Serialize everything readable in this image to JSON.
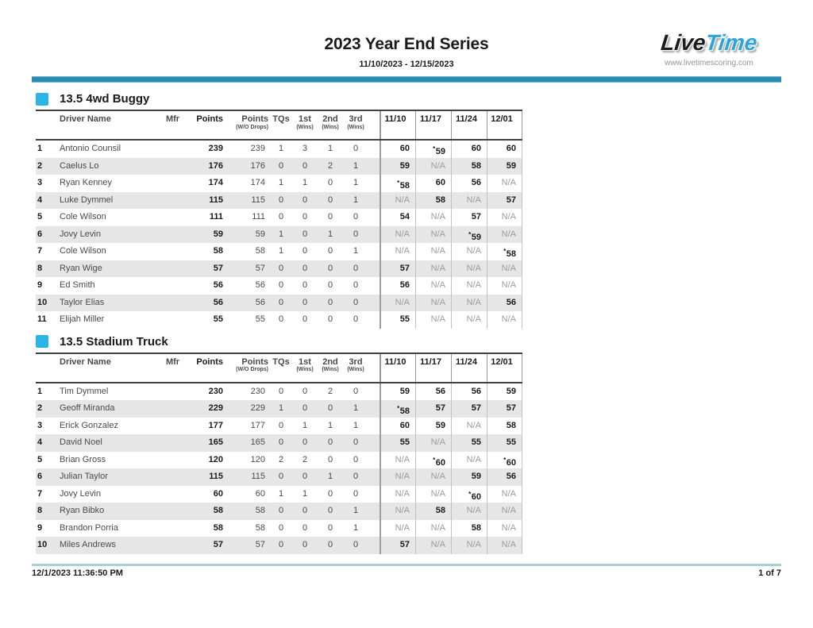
{
  "header": {
    "title": "2023 Year End Series",
    "date_range": "11/10/2023 - 12/15/2023",
    "logo_live": "Live",
    "logo_time": "Time",
    "logo_url": "www.livetimescoring.com"
  },
  "columns": {
    "position": "",
    "driver": "Driver Name",
    "mfr": "Mfr",
    "points": "Points",
    "points_wo_main": "Points",
    "points_wo_sub": "(W/O Drops)",
    "tqs": "TQs",
    "win_cols": [
      {
        "main": "1st",
        "sub": "(Wins)"
      },
      {
        "main": "2nd",
        "sub": "(Wins)"
      },
      {
        "main": "3rd",
        "sub": "(Wins)"
      }
    ],
    "race_dates": [
      "11/10",
      "11/17",
      "11/24",
      "12/01"
    ]
  },
  "sections": [
    {
      "title": "13.5 4wd Buggy",
      "rows": [
        {
          "pos": "1",
          "driver": "Antonio Counsil",
          "mfr": "",
          "points": "239",
          "points_wo": "239",
          "tqs": "1",
          "wins": [
            "3",
            "1",
            "0"
          ],
          "scores": [
            "60",
            "*59",
            "60",
            "60"
          ]
        },
        {
          "pos": "2",
          "driver": "Caelus Lo",
          "mfr": "",
          "points": "176",
          "points_wo": "176",
          "tqs": "0",
          "wins": [
            "0",
            "2",
            "1"
          ],
          "scores": [
            "59",
            "N/A",
            "58",
            "59"
          ]
        },
        {
          "pos": "3",
          "driver": "Ryan Kenney",
          "mfr": "",
          "points": "174",
          "points_wo": "174",
          "tqs": "1",
          "wins": [
            "1",
            "0",
            "1"
          ],
          "scores": [
            "*58",
            "60",
            "56",
            "N/A"
          ]
        },
        {
          "pos": "4",
          "driver": "Luke Dymmel",
          "mfr": "",
          "points": "115",
          "points_wo": "115",
          "tqs": "0",
          "wins": [
            "0",
            "0",
            "1"
          ],
          "scores": [
            "N/A",
            "58",
            "N/A",
            "57"
          ]
        },
        {
          "pos": "5",
          "driver": "Cole Wilson",
          "mfr": "",
          "points": "111",
          "points_wo": "111",
          "tqs": "0",
          "wins": [
            "0",
            "0",
            "0"
          ],
          "scores": [
            "54",
            "N/A",
            "57",
            "N/A"
          ]
        },
        {
          "pos": "6",
          "driver": "Jovy Levin",
          "mfr": "",
          "points": "59",
          "points_wo": "59",
          "tqs": "1",
          "wins": [
            "0",
            "1",
            "0"
          ],
          "scores": [
            "N/A",
            "N/A",
            "*59",
            "N/A"
          ]
        },
        {
          "pos": "7",
          "driver": "Cole Wilson",
          "mfr": "",
          "points": "58",
          "points_wo": "58",
          "tqs": "1",
          "wins": [
            "0",
            "0",
            "1"
          ],
          "scores": [
            "N/A",
            "N/A",
            "N/A",
            "*58"
          ]
        },
        {
          "pos": "8",
          "driver": "Ryan Wige",
          "mfr": "",
          "points": "57",
          "points_wo": "57",
          "tqs": "0",
          "wins": [
            "0",
            "0",
            "0"
          ],
          "scores": [
            "57",
            "N/A",
            "N/A",
            "N/A"
          ]
        },
        {
          "pos": "9",
          "driver": "Ed Smith",
          "mfr": "",
          "points": "56",
          "points_wo": "56",
          "tqs": "0",
          "wins": [
            "0",
            "0",
            "0"
          ],
          "scores": [
            "56",
            "N/A",
            "N/A",
            "N/A"
          ]
        },
        {
          "pos": "10",
          "driver": "Taylor Elias",
          "mfr": "",
          "points": "56",
          "points_wo": "56",
          "tqs": "0",
          "wins": [
            "0",
            "0",
            "0"
          ],
          "scores": [
            "N/A",
            "N/A",
            "N/A",
            "56"
          ]
        },
        {
          "pos": "11",
          "driver": "Elijah Miller",
          "mfr": "",
          "points": "55",
          "points_wo": "55",
          "tqs": "0",
          "wins": [
            "0",
            "0",
            "0"
          ],
          "scores": [
            "55",
            "N/A",
            "N/A",
            "N/A"
          ]
        }
      ]
    },
    {
      "title": "13.5 Stadium Truck",
      "rows": [
        {
          "pos": "1",
          "driver": "Tim Dymmel",
          "mfr": "",
          "points": "230",
          "points_wo": "230",
          "tqs": "0",
          "wins": [
            "0",
            "2",
            "0"
          ],
          "scores": [
            "59",
            "56",
            "56",
            "59"
          ]
        },
        {
          "pos": "2",
          "driver": "Geoff Miranda",
          "mfr": "",
          "points": "229",
          "points_wo": "229",
          "tqs": "1",
          "wins": [
            "0",
            "0",
            "1"
          ],
          "scores": [
            "*58",
            "57",
            "57",
            "57"
          ]
        },
        {
          "pos": "3",
          "driver": "Erick Gonzalez",
          "mfr": "",
          "points": "177",
          "points_wo": "177",
          "tqs": "0",
          "wins": [
            "1",
            "1",
            "1"
          ],
          "scores": [
            "60",
            "59",
            "N/A",
            "58"
          ]
        },
        {
          "pos": "4",
          "driver": "David Noel",
          "mfr": "",
          "points": "165",
          "points_wo": "165",
          "tqs": "0",
          "wins": [
            "0",
            "0",
            "0"
          ],
          "scores": [
            "55",
            "N/A",
            "55",
            "55"
          ]
        },
        {
          "pos": "5",
          "driver": "Brian Gross",
          "mfr": "",
          "points": "120",
          "points_wo": "120",
          "tqs": "2",
          "wins": [
            "2",
            "0",
            "0"
          ],
          "scores": [
            "N/A",
            "*60",
            "N/A",
            "*60"
          ]
        },
        {
          "pos": "6",
          "driver": "Julian Taylor",
          "mfr": "",
          "points": "115",
          "points_wo": "115",
          "tqs": "0",
          "wins": [
            "0",
            "1",
            "0"
          ],
          "scores": [
            "N/A",
            "N/A",
            "59",
            "56"
          ]
        },
        {
          "pos": "7",
          "driver": "Jovy Levin",
          "mfr": "",
          "points": "60",
          "points_wo": "60",
          "tqs": "1",
          "wins": [
            "1",
            "0",
            "0"
          ],
          "scores": [
            "N/A",
            "N/A",
            "*60",
            "N/A"
          ]
        },
        {
          "pos": "8",
          "driver": "Ryan Bibko",
          "mfr": "",
          "points": "58",
          "points_wo": "58",
          "tqs": "0",
          "wins": [
            "0",
            "0",
            "1"
          ],
          "scores": [
            "N/A",
            "58",
            "N/A",
            "N/A"
          ]
        },
        {
          "pos": "9",
          "driver": "Brandon Porria",
          "mfr": "",
          "points": "58",
          "points_wo": "58",
          "tqs": "0",
          "wins": [
            "0",
            "0",
            "1"
          ],
          "scores": [
            "N/A",
            "N/A",
            "58",
            "N/A"
          ]
        },
        {
          "pos": "10",
          "driver": "Miles Andrews",
          "mfr": "",
          "points": "57",
          "points_wo": "57",
          "tqs": "0",
          "wins": [
            "0",
            "0",
            "0"
          ],
          "scores": [
            "57",
            "N/A",
            "N/A",
            "N/A"
          ]
        }
      ]
    }
  ],
  "footer": {
    "timestamp": "12/1/2023 11:36:50 PM",
    "page": "1 of 7"
  },
  "colors": {
    "header_rule": "#2b8cb2",
    "class_bullet": "#29b5e8",
    "row_alt": "#e6e6e6",
    "na_text": "#9b9b9b",
    "footer_rule": "#a9ced8",
    "logo_time_blue": "#2aa4dd"
  }
}
